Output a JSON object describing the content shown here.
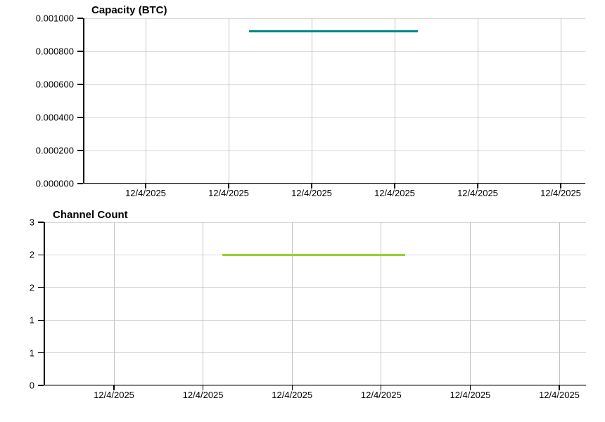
{
  "background": "#ffffff",
  "colors": {
    "capacity_line": "#008789",
    "channel_count_line": "#9ACD32",
    "h_gridline": "#d6d6d6",
    "v_gridline": "#c3c3c3",
    "axis": "#000000",
    "text": "#000000"
  },
  "chart_data": [
    {
      "type": "line",
      "title": "Capacity (BTC)",
      "xlabel": "",
      "ylabel": "",
      "ylim": [
        0,
        0.001
      ],
      "grid": true,
      "legend": "none",
      "y_ticks": [
        {
          "value": 0.001,
          "label": "0.001000"
        },
        {
          "value": 0.0008,
          "label": "0.000800"
        },
        {
          "value": 0.0006,
          "label": "0.000600"
        },
        {
          "value": 0.0004,
          "label": "0.000400"
        },
        {
          "value": 0.0002,
          "label": "0.000200"
        },
        {
          "value": 0.0,
          "label": "0.000000"
        }
      ],
      "x_tick_labels": [
        "12/4/2025",
        "12/4/2025",
        "12/4/2025",
        "12/4/2025",
        "12/4/2025",
        "12/4/2025"
      ],
      "series": [
        {
          "name": "Capacity (BTC)",
          "color": "#008789",
          "shape": "constant-horizontal-line",
          "value": 0.00092,
          "x_span_fraction": [
            0.33,
            0.667
          ]
        }
      ]
    },
    {
      "type": "line",
      "title": "Channel Count",
      "xlabel": "",
      "ylabel": "",
      "ylim": [
        0,
        2.5
      ],
      "grid": true,
      "legend": "none",
      "y_ticks": [
        {
          "value": 2.5,
          "label": "3"
        },
        {
          "value": 2.0,
          "label": "2"
        },
        {
          "value": 1.5,
          "label": "2"
        },
        {
          "value": 1.0,
          "label": "1"
        },
        {
          "value": 0.5,
          "label": "1"
        },
        {
          "value": 0.0,
          "label": "0"
        }
      ],
      "x_tick_labels": [
        "12/4/2025",
        "12/4/2025",
        "12/4/2025",
        "12/4/2025",
        "12/4/2025",
        "12/4/2025"
      ],
      "series": [
        {
          "name": "Channel Count",
          "color": "#9ACD32",
          "shape": "constant-horizontal-line",
          "value": 2,
          "x_span_fraction": [
            0.33,
            0.667
          ]
        }
      ]
    }
  ]
}
